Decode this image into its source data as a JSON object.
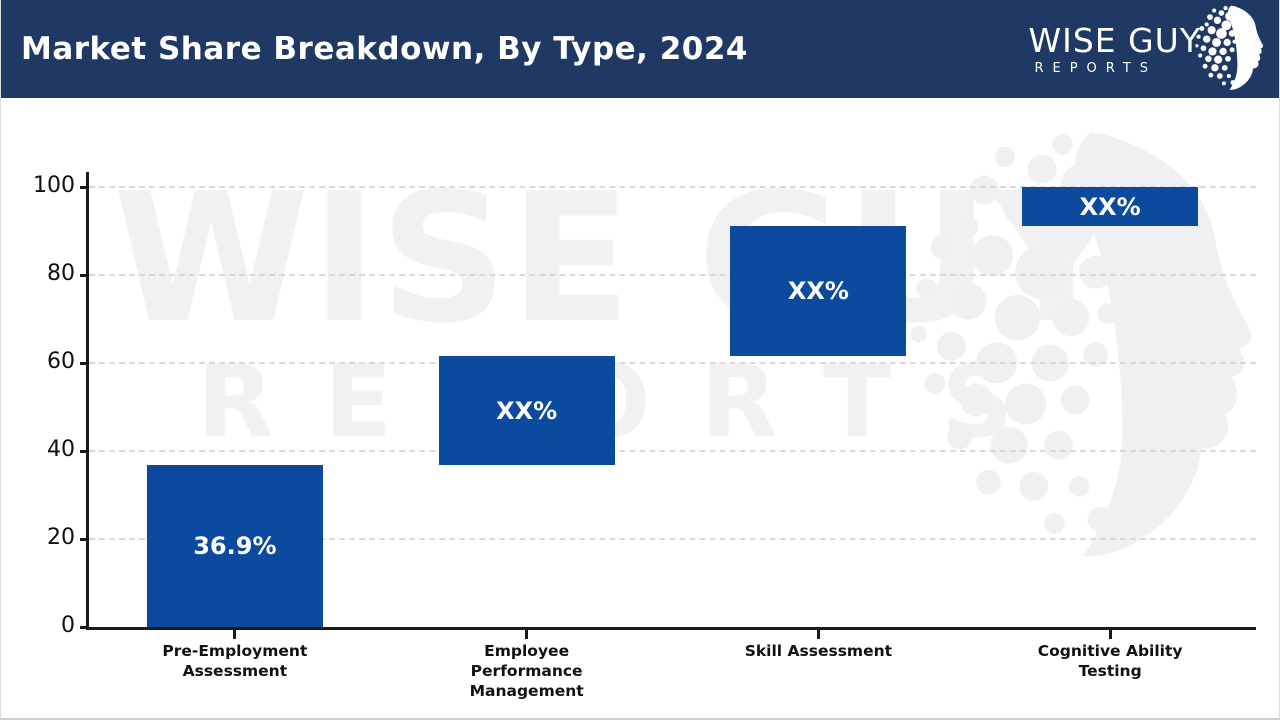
{
  "header": {
    "title": "Market Share Breakdown, By Type, 2024",
    "bg_color": "#1f3864",
    "logo": {
      "name": "WISE GUY",
      "tagline": "REPORTS"
    }
  },
  "watermark": {
    "line1": "WISE GUY",
    "line2": "REPORTS"
  },
  "chart_data": {
    "type": "bar",
    "subtype": "waterfall",
    "title": "Market Share Breakdown, By Type, 2024",
    "categories": [
      "Pre-Employment\nAssessment",
      "Employee\nPerformance\nManagement",
      "Skill Assessment",
      "Cognitive Ability\nTesting"
    ],
    "segments": [
      {
        "category": "Pre-Employment Assessment",
        "start": 0,
        "end": 36.9,
        "label": "36.9%"
      },
      {
        "category": "Employee Performance Management",
        "start": 36.9,
        "end": 61.5,
        "label": "XX%"
      },
      {
        "category": "Skill Assessment",
        "start": 61.5,
        "end": 91.1,
        "label": "XX%"
      },
      {
        "category": "Cognitive Ability Testing",
        "start": 91.1,
        "end": 100,
        "label": "XX%"
      }
    ],
    "values": [
      36.9,
      24.6,
      29.6,
      8.9
    ],
    "yticks": [
      0,
      20,
      40,
      60,
      80,
      100
    ],
    "ylim": [
      0,
      103.5
    ],
    "xlabel": "",
    "ylabel": "",
    "legend": "none",
    "grid": "horizontal-dashed",
    "bar_color": "#0b4a9e",
    "bar_label_color": "#ffffff",
    "axis_color": "#1a1a1a",
    "grid_color": "#d9d9d9"
  }
}
